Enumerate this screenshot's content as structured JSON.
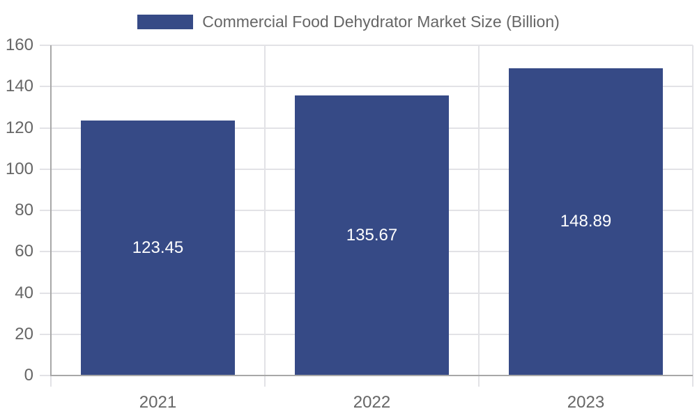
{
  "chart_data": {
    "type": "bar",
    "title": "Commercial Food Dehydrator Market Size (Billion)",
    "categories": [
      "2021",
      "2022",
      "2023"
    ],
    "values": [
      123.45,
      135.67,
      148.89
    ],
    "value_labels": [
      "123.45",
      "135.67",
      "148.89"
    ],
    "ylim": [
      0,
      160
    ],
    "yticks": [
      0,
      20,
      40,
      60,
      80,
      100,
      120,
      140,
      160
    ],
    "grid": true,
    "legend_position": "top",
    "colors": {
      "bar": "#364a86",
      "value_text": "#ffffff",
      "label_text": "#666666",
      "grid_line": "#e2e2e6",
      "axis_line": "#a8a8a8",
      "background": "#ffffff"
    }
  }
}
